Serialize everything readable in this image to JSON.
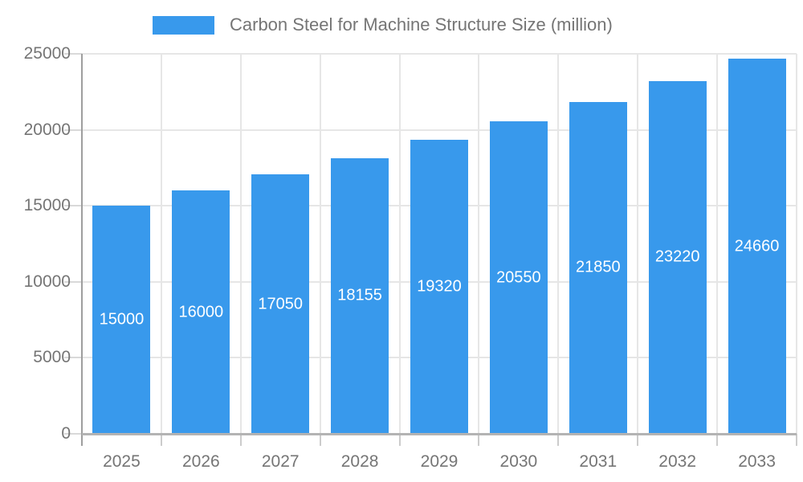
{
  "chart_data": {
    "type": "bar",
    "title": "Carbon Steel for Machine Structure Size (million)",
    "categories": [
      "2025",
      "2026",
      "2027",
      "2028",
      "2029",
      "2030",
      "2031",
      "2032",
      "2033"
    ],
    "values": [
      15000,
      16000,
      17050,
      18155,
      19320,
      20550,
      21850,
      23220,
      24660
    ],
    "value_labels": [
      "15000",
      "16000",
      "17050",
      "18155",
      "19320",
      "20550",
      "21850",
      "23220",
      "24660"
    ],
    "xlabel": "",
    "ylabel": "",
    "ylim": [
      0,
      25000
    ],
    "ytick_step": 5000,
    "ytick_labels": [
      "0",
      "5000",
      "10000",
      "15000",
      "20000",
      "25000"
    ],
    "grid": true,
    "legend_position": "top",
    "colors": {
      "bar": "#3899ec",
      "value_label": "#ffffff",
      "axis_label": "#757575",
      "gridline": "#e6e6e6",
      "axis_line": "#b3b3b3",
      "background": "#ffffff"
    }
  }
}
